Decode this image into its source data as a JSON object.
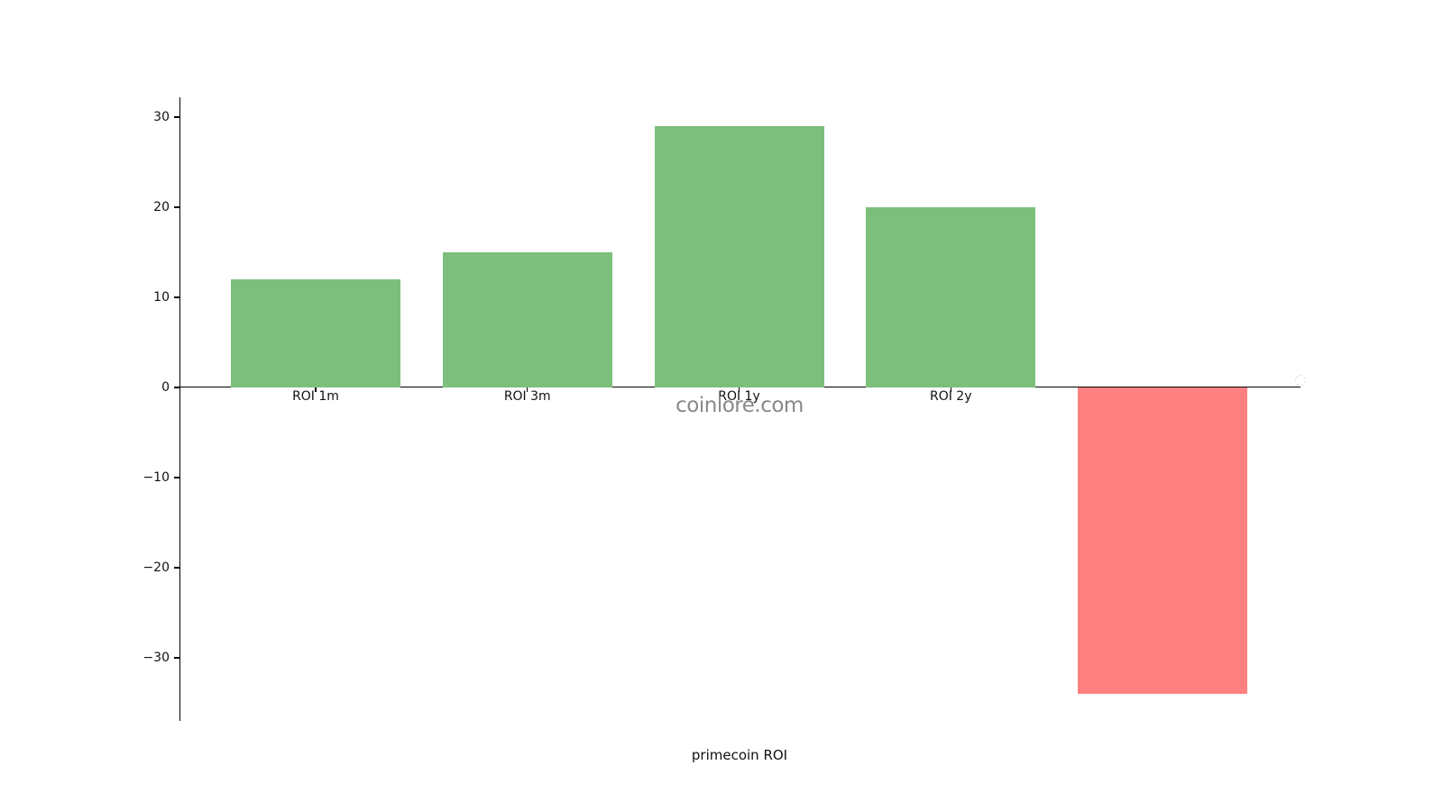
{
  "chart_data": {
    "type": "bar",
    "title": "",
    "xlabel": "primecoin ROI",
    "ylabel": "",
    "categories": [
      "ROI 1m",
      "ROI 3m",
      "ROI 1y",
      "ROI 2y",
      ""
    ],
    "values": [
      12,
      15,
      29,
      20,
      -34
    ],
    "positive_color": "#7dbe7d",
    "negative_color": "#ff8080",
    "y_ticks": [
      30,
      20,
      10,
      0,
      -10,
      -20,
      -30
    ],
    "ylim": [
      -37,
      32
    ],
    "grid": false,
    "legend": null,
    "baseline": 0
  },
  "watermark": {
    "text": "coinlore.com",
    "color": "#888888"
  }
}
